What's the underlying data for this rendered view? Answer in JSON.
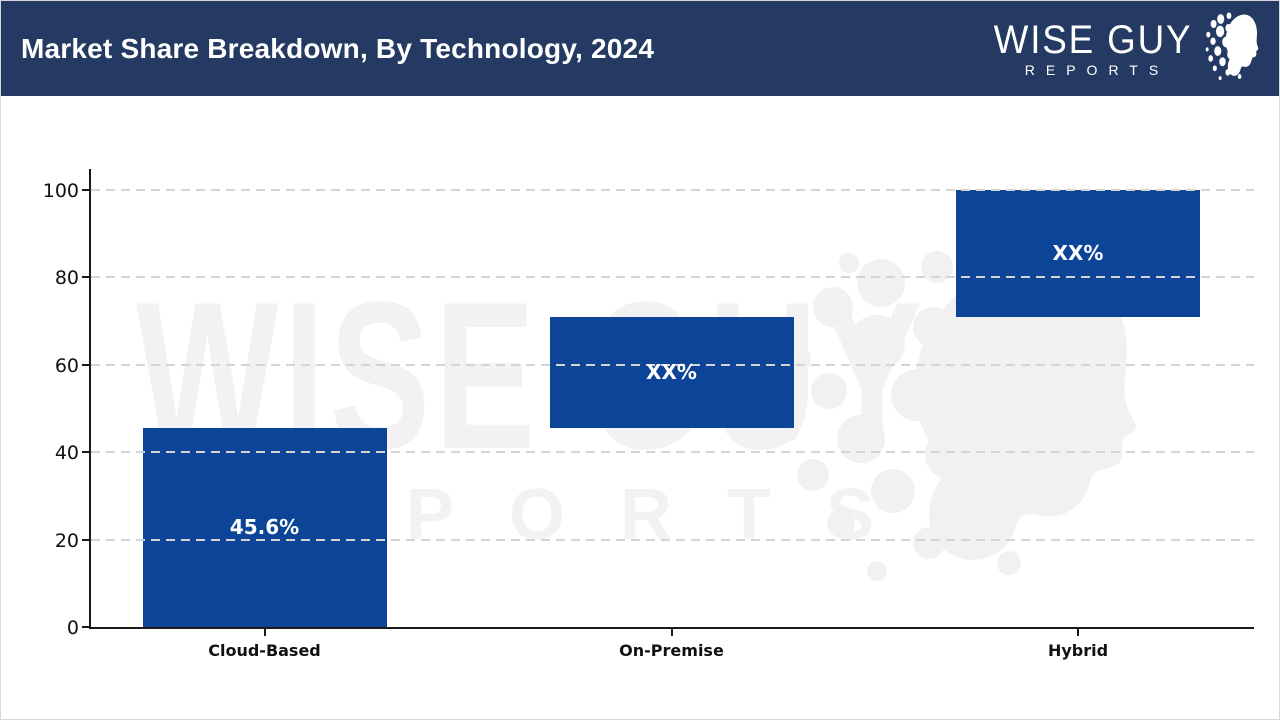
{
  "header": {
    "title": "Market Share Breakdown, By Technology, 2024",
    "bg_color": "#243a62",
    "logo": {
      "line1": "WISE GUY",
      "line2": "REPORTS"
    }
  },
  "watermark": {
    "line1": "WISE GUY",
    "line2": "REPORTS"
  },
  "chart_data": {
    "type": "bar",
    "subtype": "floating-waterfall",
    "title": "Market Share Breakdown, By Technology, 2024",
    "categories": [
      "Cloud-Based",
      "On-Premise",
      "Hybrid"
    ],
    "segments": [
      {
        "category": "Cloud-Based",
        "from": 0,
        "to": 45.6,
        "label": "45.6%"
      },
      {
        "category": "On-Premise",
        "from": 45.6,
        "to": 70.8,
        "label": "XX%"
      },
      {
        "category": "Hybrid",
        "from": 70.8,
        "to": 100,
        "label": "XX%"
      }
    ],
    "xlabel": "",
    "ylabel": "",
    "ylim": [
      0,
      100
    ],
    "yticks": [
      0,
      20,
      40,
      60,
      80,
      100
    ],
    "grid": "horizontal-dashed",
    "legend": "none",
    "bar_color": "#0c4497",
    "bar_label_color": "#ffffff",
    "axis_color": "#1a1a1a",
    "gridline_color": "#d4d4d4"
  }
}
